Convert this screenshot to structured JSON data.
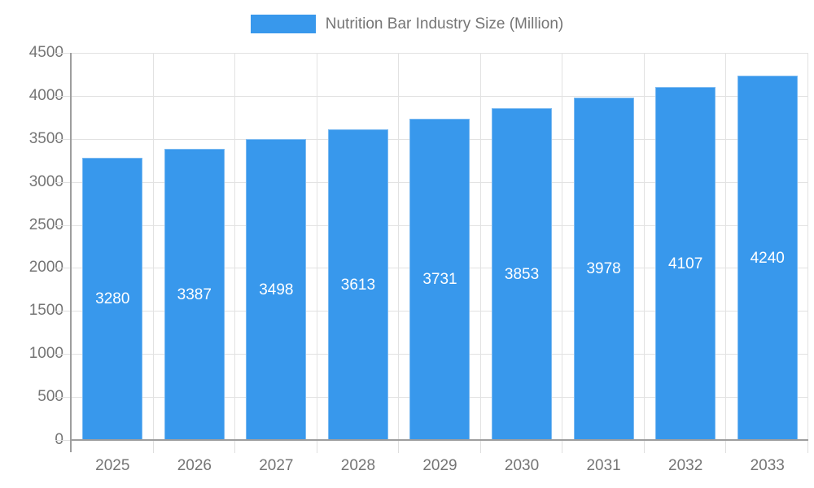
{
  "legend": {
    "label": "Nutrition Bar Industry Size (Million)"
  },
  "chart_data": {
    "type": "bar",
    "title": "Nutrition Bar Industry Size (Million)",
    "series_name": "Nutrition Bar Industry Size (Million)",
    "categories": [
      "2025",
      "2026",
      "2027",
      "2028",
      "2029",
      "2030",
      "2031",
      "2032",
      "2033"
    ],
    "values": [
      3280,
      3387,
      3498,
      3613,
      3731,
      3853,
      3978,
      4107,
      4240
    ],
    "value_labels_shown": true,
    "xlabel": "",
    "ylabel": "",
    "ylim": [
      0,
      4500
    ],
    "ytick_step": 500,
    "yticks": [
      0,
      500,
      1000,
      1500,
      2000,
      2500,
      3000,
      3500,
      4000,
      4500
    ],
    "grid": true,
    "legend_position": "top-center",
    "colors": {
      "bar_fill": "#3898EC",
      "bar_stroke": "#7CBAF1",
      "grid_line": "#E2E2E2",
      "axis_line": "#9E9E9E",
      "tick_line": "#DFDFDF",
      "label_text": "#757575",
      "value_text": "#FFFFFF",
      "background": "#FFFFFF"
    }
  }
}
